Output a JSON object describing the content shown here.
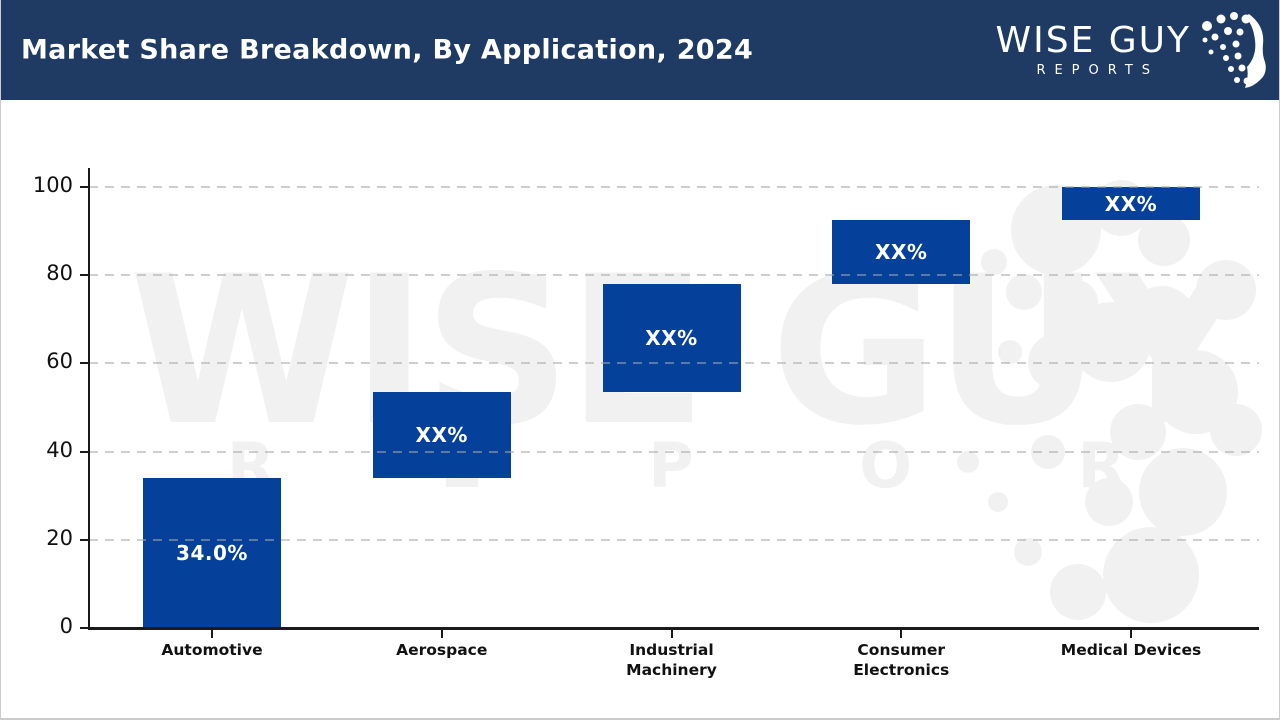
{
  "header": {
    "title": "Market Share Breakdown, By Application, 2024",
    "logo": {
      "line1": "WISE GUY",
      "line2": "REPORTS"
    }
  },
  "watermark": {
    "line1": "WISE GUY",
    "line2": "REPORTS"
  },
  "chart_data": {
    "type": "bar",
    "subtype": "waterfall",
    "title": "Market Share Breakdown, By Application, 2024",
    "categories": [
      [
        "Automotive"
      ],
      [
        "Aerospace"
      ],
      [
        "Industrial",
        "Machinery"
      ],
      [
        "Consumer",
        "Electronics"
      ],
      [
        "Medical Devices"
      ]
    ],
    "segments": [
      {
        "category": "Automotive",
        "label": "34.0%",
        "start": 0,
        "end": 34.0
      },
      {
        "category": "Aerospace",
        "label": "XX%",
        "start": 34.0,
        "end": 53.5
      },
      {
        "category": "Industrial Machinery",
        "label": "XX%",
        "start": 53.5,
        "end": 78.0
      },
      {
        "category": "Consumer Electronics",
        "label": "XX%",
        "start": 78.0,
        "end": 92.5
      },
      {
        "category": "Medical Devices",
        "label": "XX%",
        "start": 92.5,
        "end": 100.0
      }
    ],
    "yticks": [
      0,
      20,
      40,
      60,
      80,
      100
    ],
    "ylim": [
      0,
      105
    ],
    "xlabel": "",
    "ylabel": "",
    "grid": "horizontal-dashed",
    "legend": "none",
    "colors": {
      "bar": "#05409a",
      "bar_label": "#ffffff",
      "axis": "#1a1a1a",
      "grid": "#d8d8d8",
      "header_bg": "#1f3a63",
      "watermark": "#f1f1f1"
    }
  }
}
